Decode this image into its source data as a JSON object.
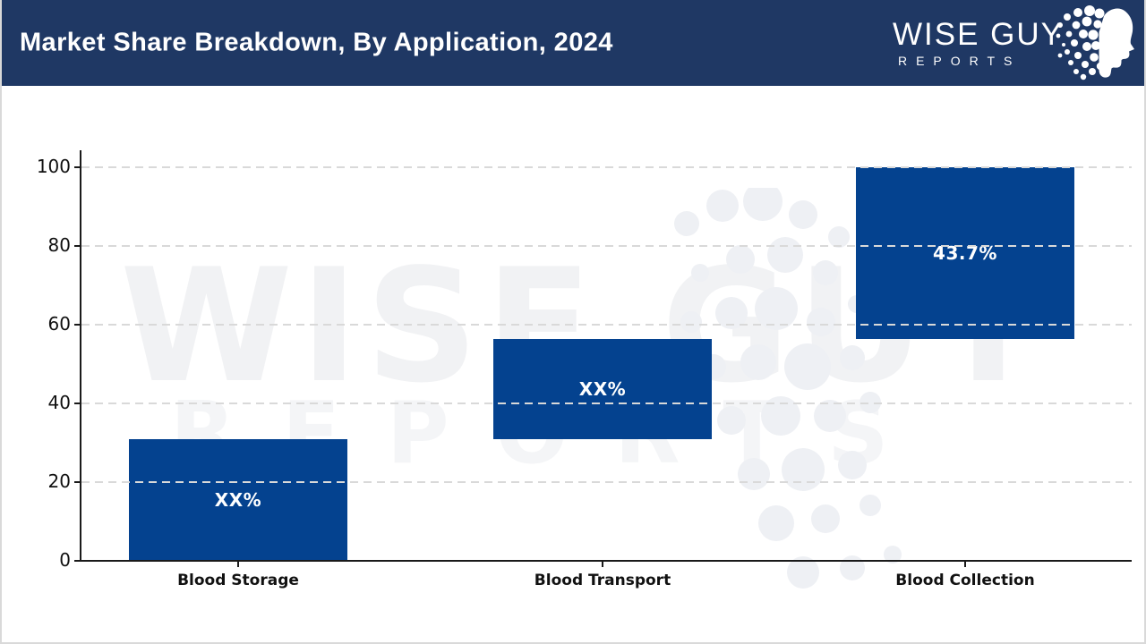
{
  "page": {
    "bg": "#ffffff",
    "border_color": "#d9d9d9"
  },
  "header": {
    "bg": "#1f3864",
    "title": "Market Share Breakdown, By Application, 2024",
    "logo": {
      "wordmark": "WISE GUY",
      "sub": "REPORTS"
    }
  },
  "watermark": {
    "wordmark": "WISE GUY",
    "sub": "REPORTS"
  },
  "chart_data": {
    "type": "bar",
    "subtype": "floating-segment-bars",
    "title": "Market Share Breakdown, By Application, 2024",
    "categories": [
      "Blood Storage",
      "Blood Transport",
      "Blood Collection"
    ],
    "segments": [
      {
        "category": "Blood Storage",
        "start": 0,
        "end": 31,
        "label": "XX%"
      },
      {
        "category": "Blood Transport",
        "start": 31,
        "end": 56.3,
        "label": "XX%"
      },
      {
        "category": "Blood Collection",
        "start": 56.3,
        "end": 100,
        "label": "43.7%"
      }
    ],
    "bar_labels": [
      "XX%",
      "XX%",
      "43.7%"
    ],
    "ylim": [
      0,
      100
    ],
    "yticks": [
      0,
      20,
      40,
      60,
      80,
      100
    ],
    "xlabel": "",
    "ylabel": "",
    "grid": "horizontal-dashed",
    "legend": "none",
    "bar_color": "#04428f",
    "value_label_color": "#ffffff",
    "axis_color": "#1a1a1a",
    "gridline_color": "#d9d9d9"
  }
}
